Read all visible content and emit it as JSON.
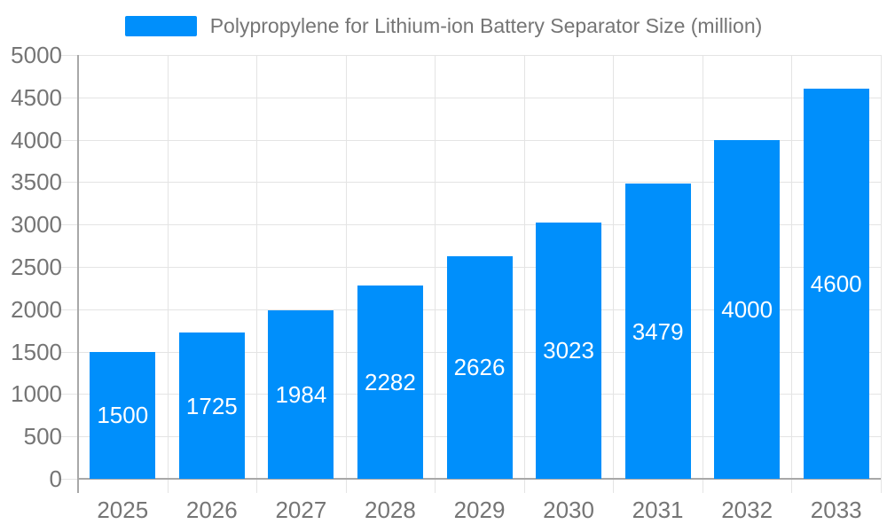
{
  "chart_data": {
    "type": "bar",
    "categories": [
      "2025",
      "2026",
      "2027",
      "2028",
      "2029",
      "2030",
      "2031",
      "2032",
      "2033"
    ],
    "series": [
      {
        "name": "Polypropylene for Lithium-ion Battery Separator Size (million)",
        "values": [
          1500,
          1725,
          1984,
          2282,
          2626,
          3023,
          3479,
          4000,
          4600
        ]
      }
    ],
    "data_labels": [
      "1500",
      "1725",
      "1984",
      "2282",
      "2626",
      "3023",
      "3479",
      "4000",
      "4600"
    ],
    "yticks": [
      0,
      500,
      1000,
      1500,
      2000,
      2500,
      3000,
      3500,
      4000,
      4500,
      5000
    ],
    "ylim": [
      0,
      5000
    ],
    "xlabel": "",
    "ylabel": "",
    "grid": true,
    "legend_position": "top",
    "colors": {
      "bar": "#008FFB",
      "value_label_text": "#ffffff",
      "axis_text": "#757575",
      "grid_line": "#e4e4e4",
      "axis_line": "#a8a8a8"
    }
  }
}
